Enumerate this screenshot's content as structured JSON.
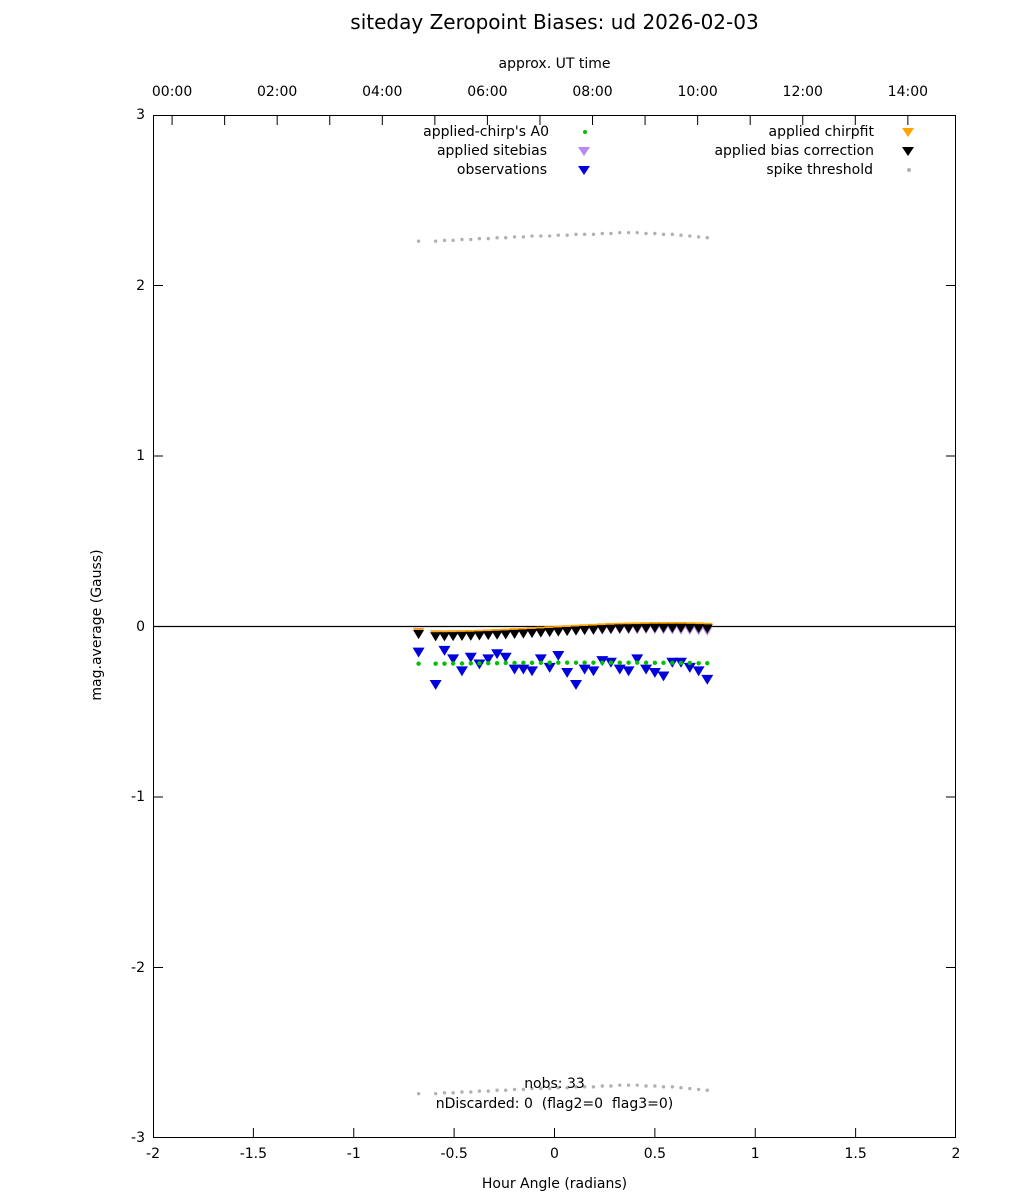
{
  "title": "siteday Zeropoint Biases:  ud  2026-02-03",
  "axes": {
    "x2": {
      "label": "approx. UT time",
      "tick_labels": [
        "00:00",
        "02:00",
        "04:00",
        "06:00",
        "08:00",
        "10:00",
        "12:00",
        "14:00"
      ],
      "tick_hours": [
        0,
        2,
        4,
        6,
        8,
        10,
        12,
        14
      ],
      "minor_tick_every_hours": 1,
      "hours_range_shown": [
        0,
        14
      ]
    },
    "x": {
      "label": "Hour Angle (radians)",
      "tick_labels": [
        "-2",
        "-1.5",
        "-1",
        "-0.5",
        "0",
        "0.5",
        "1",
        "1.5",
        "2"
      ],
      "tick_values": [
        -2,
        -1.5,
        -1,
        -0.5,
        0,
        0.5,
        1,
        1.5,
        2
      ],
      "range": [
        -2,
        2
      ]
    },
    "y": {
      "label": "mag.average (Gauss)",
      "tick_labels": [
        "3",
        "2",
        "1",
        "0",
        "-1",
        "-2",
        "-3"
      ],
      "tick_values": [
        3,
        2,
        1,
        0,
        -1,
        -2,
        -3
      ],
      "range": [
        -3,
        3
      ]
    }
  },
  "legend": {
    "left": [
      {
        "label": "applied-chirp's A0",
        "series": "a0"
      },
      {
        "label": "applied sitebias",
        "series": "sitebias"
      },
      {
        "label": "observations",
        "series": "observations"
      }
    ],
    "right": [
      {
        "label": "applied chirpfit",
        "series": "chirpfit"
      },
      {
        "label": "applied bias correction",
        "series": "bias"
      },
      {
        "label": "spike threshold",
        "series": "spike"
      }
    ]
  },
  "annotations": {
    "nobs": "nobs: 33",
    "ndiscarded": "nDiscarded: 0  (flag2=0  flag3=0)"
  },
  "colors": {
    "a0": "#00c000",
    "sitebias": "#bb88ee",
    "observations": "#0000dd",
    "chirpfit": "#ffa500",
    "bias": "#000000",
    "spike": "#b0b0b0",
    "axis": "#000000",
    "background": "#ffffff"
  },
  "chart_data": {
    "type": "scatter",
    "title": "siteday Zeropoint Biases:  ud  2026-02-03",
    "xlabel": "Hour Angle (radians)",
    "x2label": "approx. UT time",
    "ylabel": "mag.average (Gauss)",
    "xlim": [
      -2,
      2
    ],
    "ylim": [
      -3,
      3
    ],
    "grid": false,
    "zero_line": true,
    "ut_hour_at_plot_left_edge": -0.37,
    "radians_per_hour": 0.2618,
    "hour_angle_at_ut_0000": -1.905,
    "n_points": 33,
    "x": [
      -0.677,
      -0.592,
      -0.548,
      -0.505,
      -0.461,
      -0.417,
      -0.374,
      -0.33,
      -0.286,
      -0.243,
      -0.199,
      -0.155,
      -0.112,
      -0.068,
      -0.024,
      0.019,
      0.063,
      0.107,
      0.15,
      0.194,
      0.238,
      0.281,
      0.325,
      0.369,
      0.412,
      0.456,
      0.5,
      0.543,
      0.587,
      0.63,
      0.674,
      0.718,
      0.761
    ],
    "series": [
      {
        "key": "spike_upper",
        "name": "spike threshold (upper)",
        "marker": "dot-small",
        "color": "#b0b0b0",
        "values": [
          2.26,
          2.26,
          2.265,
          2.265,
          2.27,
          2.27,
          2.275,
          2.275,
          2.28,
          2.28,
          2.285,
          2.285,
          2.29,
          2.29,
          2.29,
          2.295,
          2.295,
          2.3,
          2.3,
          2.3,
          2.305,
          2.305,
          2.31,
          2.31,
          2.31,
          2.305,
          2.305,
          2.3,
          2.3,
          2.295,
          2.29,
          2.285,
          2.28
        ]
      },
      {
        "key": "spike_lower",
        "name": "spike threshold (lower)",
        "marker": "dot-small",
        "color": "#b0b0b0",
        "values": [
          -2.74,
          -2.74,
          -2.735,
          -2.735,
          -2.73,
          -2.73,
          -2.725,
          -2.725,
          -2.72,
          -2.72,
          -2.715,
          -2.715,
          -2.71,
          -2.71,
          -2.71,
          -2.705,
          -2.705,
          -2.7,
          -2.7,
          -2.7,
          -2.695,
          -2.695,
          -2.69,
          -2.69,
          -2.69,
          -2.695,
          -2.695,
          -2.7,
          -2.7,
          -2.705,
          -2.71,
          -2.715,
          -2.72
        ]
      },
      {
        "key": "observations",
        "name": "observations",
        "marker": "triangle-down",
        "color": "#0000dd",
        "values": [
          -0.15,
          -0.34,
          -0.14,
          -0.19,
          -0.26,
          -0.18,
          -0.22,
          -0.19,
          -0.16,
          -0.18,
          -0.25,
          -0.25,
          -0.26,
          -0.19,
          -0.24,
          -0.17,
          -0.27,
          -0.34,
          -0.25,
          -0.26,
          -0.2,
          -0.21,
          -0.25,
          -0.26,
          -0.19,
          -0.25,
          -0.27,
          -0.29,
          -0.21,
          -0.21,
          -0.24,
          -0.26,
          -0.31
        ]
      },
      {
        "key": "a0",
        "name": "applied-chirp's A0",
        "marker": "dot",
        "color": "#00c000",
        "values": [
          -0.218,
          -0.218,
          -0.218,
          -0.217,
          -0.217,
          -0.216,
          -0.216,
          -0.215,
          -0.215,
          -0.214,
          -0.214,
          -0.213,
          -0.213,
          -0.213,
          -0.212,
          -0.212,
          -0.212,
          -0.212,
          -0.212,
          -0.212,
          -0.212,
          -0.212,
          -0.212,
          -0.212,
          -0.212,
          -0.212,
          -0.213,
          -0.213,
          -0.213,
          -0.214,
          -0.214,
          -0.215,
          -0.215
        ]
      },
      {
        "key": "sitebias",
        "name": "applied sitebias",
        "marker": "triangle-down",
        "color": "#bb88ee",
        "values": [
          -0.032,
          -0.046,
          -0.047,
          -0.047,
          -0.046,
          -0.046,
          -0.045,
          -0.044,
          -0.043,
          -0.042,
          -0.039,
          -0.038,
          -0.036,
          -0.034,
          -0.031,
          -0.029,
          -0.027,
          -0.025,
          -0.023,
          -0.021,
          -0.019,
          -0.018,
          -0.017,
          -0.017,
          -0.017,
          -0.016,
          -0.016,
          -0.017,
          -0.018,
          -0.019,
          -0.021,
          -0.023,
          -0.026
        ]
      },
      {
        "key": "chirpfit",
        "name": "applied chirpfit",
        "marker": "triangle-down",
        "color": "#ffa500",
        "values": [
          -0.035,
          -0.048,
          -0.048,
          -0.047,
          -0.046,
          -0.045,
          -0.043,
          -0.041,
          -0.039,
          -0.037,
          -0.034,
          -0.032,
          -0.029,
          -0.026,
          -0.023,
          -0.02,
          -0.017,
          -0.014,
          -0.011,
          -0.009,
          -0.006,
          -0.004,
          -0.002,
          -0.001,
          0.0,
          0.001,
          0.002,
          0.002,
          0.002,
          0.002,
          0.001,
          0.0,
          -0.002
        ]
      },
      {
        "key": "bias",
        "name": "applied bias correction",
        "marker": "triangle-down",
        "color": "#000000",
        "values": [
          -0.045,
          -0.058,
          -0.058,
          -0.057,
          -0.056,
          -0.055,
          -0.053,
          -0.051,
          -0.049,
          -0.047,
          -0.044,
          -0.042,
          -0.039,
          -0.036,
          -0.033,
          -0.03,
          -0.027,
          -0.024,
          -0.021,
          -0.019,
          -0.016,
          -0.014,
          -0.012,
          -0.011,
          -0.01,
          -0.009,
          -0.008,
          -0.008,
          -0.008,
          -0.008,
          -0.009,
          -0.01,
          -0.012
        ]
      }
    ]
  }
}
